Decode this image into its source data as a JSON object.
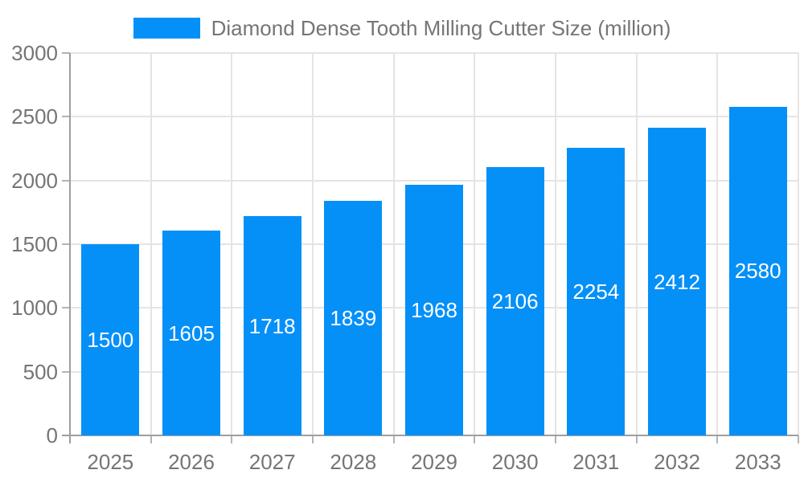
{
  "legend": {
    "label": "Diamond Dense Tooth Milling Cutter Size (million)"
  },
  "chart_data": {
    "type": "bar",
    "title": "Diamond Dense Tooth Milling Cutter Size (million)",
    "categories": [
      "2025",
      "2026",
      "2027",
      "2028",
      "2029",
      "2030",
      "2031",
      "2032",
      "2033"
    ],
    "values": [
      1500,
      1605,
      1718,
      1839,
      1968,
      2106,
      2254,
      2412,
      2580
    ],
    "xlabel": "",
    "ylabel": "",
    "ylim": [
      0,
      3000
    ],
    "yticks": [
      0,
      500,
      1000,
      1500,
      2000,
      2500,
      3000
    ],
    "grid": true,
    "legend_position": "top",
    "colors": {
      "bar": "#0590f8",
      "value_label": "#ffffff",
      "axis_text": "#757575",
      "axis_line": "#9e9e9e",
      "gridline": "#e4e4e4",
      "tick": "#b4b4b4",
      "background": "#ffffff"
    }
  }
}
